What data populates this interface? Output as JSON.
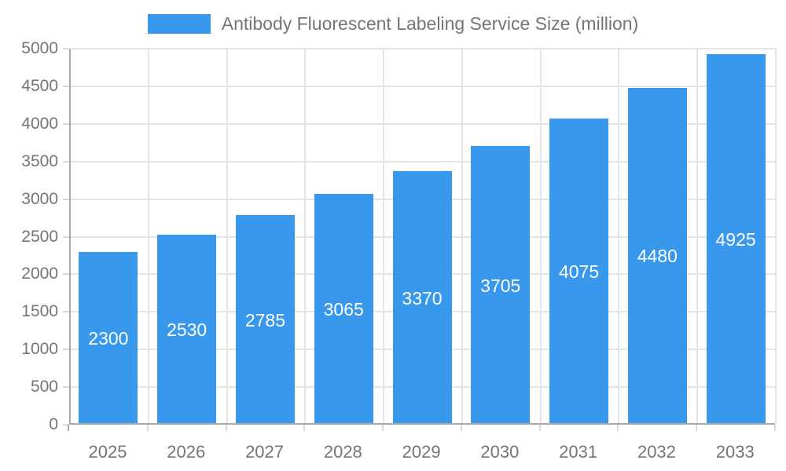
{
  "legend": {
    "label": "Antibody Fluorescent Labeling Service Size (million)"
  },
  "chart_data": {
    "type": "bar",
    "title": "Antibody Fluorescent Labeling Service Size (million)",
    "categories": [
      "2025",
      "2026",
      "2027",
      "2028",
      "2029",
      "2030",
      "2031",
      "2032",
      "2033"
    ],
    "values": [
      2300,
      2530,
      2785,
      3065,
      3370,
      3705,
      4075,
      4480,
      4925
    ],
    "xlabel": "",
    "ylabel": "",
    "ylim": [
      0,
      5000
    ],
    "ytick_step": 500,
    "ytick_labels": [
      "0",
      "500",
      "1000",
      "1500",
      "2000",
      "2500",
      "3000",
      "3500",
      "4000",
      "4500",
      "5000"
    ],
    "grid": true,
    "legend_position": "top",
    "value_labels": "inside-center"
  },
  "colors": {
    "bar": "#3898ec",
    "bar_value_text": "#ffffff",
    "axis_text": "#757575",
    "axis_line": "#a9a9a9",
    "gridline": "#e4e4e4",
    "tick": "#d9d9d9",
    "background": "#ffffff"
  }
}
